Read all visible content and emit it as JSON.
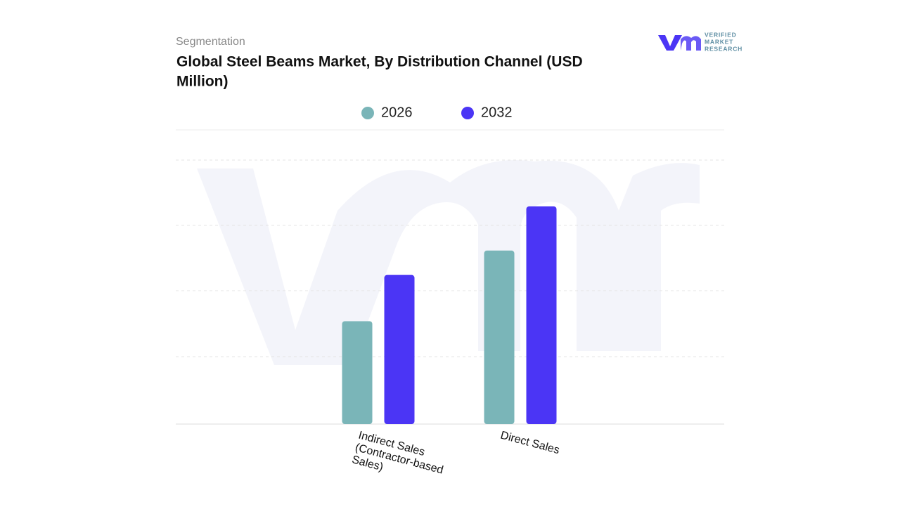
{
  "header": {
    "logo_text": [
      "VERIFIED",
      "MARKET",
      "RESEARCH"
    ]
  },
  "chart_data": {
    "type": "bar",
    "supertitle": "Segmentation",
    "title": [
      "Global Steel Beams Market, By Distribution Channel (USD",
      "Million)"
    ],
    "categories": [
      [
        "Indirect  Sales",
        "(Contractor-based",
        "Sales)"
      ],
      [
        "Direct Sales"
      ]
    ],
    "series": [
      {
        "name": "2026",
        "color": "#7ab5b8",
        "values": [
          1.56,
          2.63
        ]
      },
      {
        "name": "2032",
        "color": "#4b35f5",
        "values": [
          2.26,
          3.3
        ]
      }
    ],
    "ylim": [
      0,
      4.46
    ],
    "grid": true,
    "legend": "top"
  }
}
